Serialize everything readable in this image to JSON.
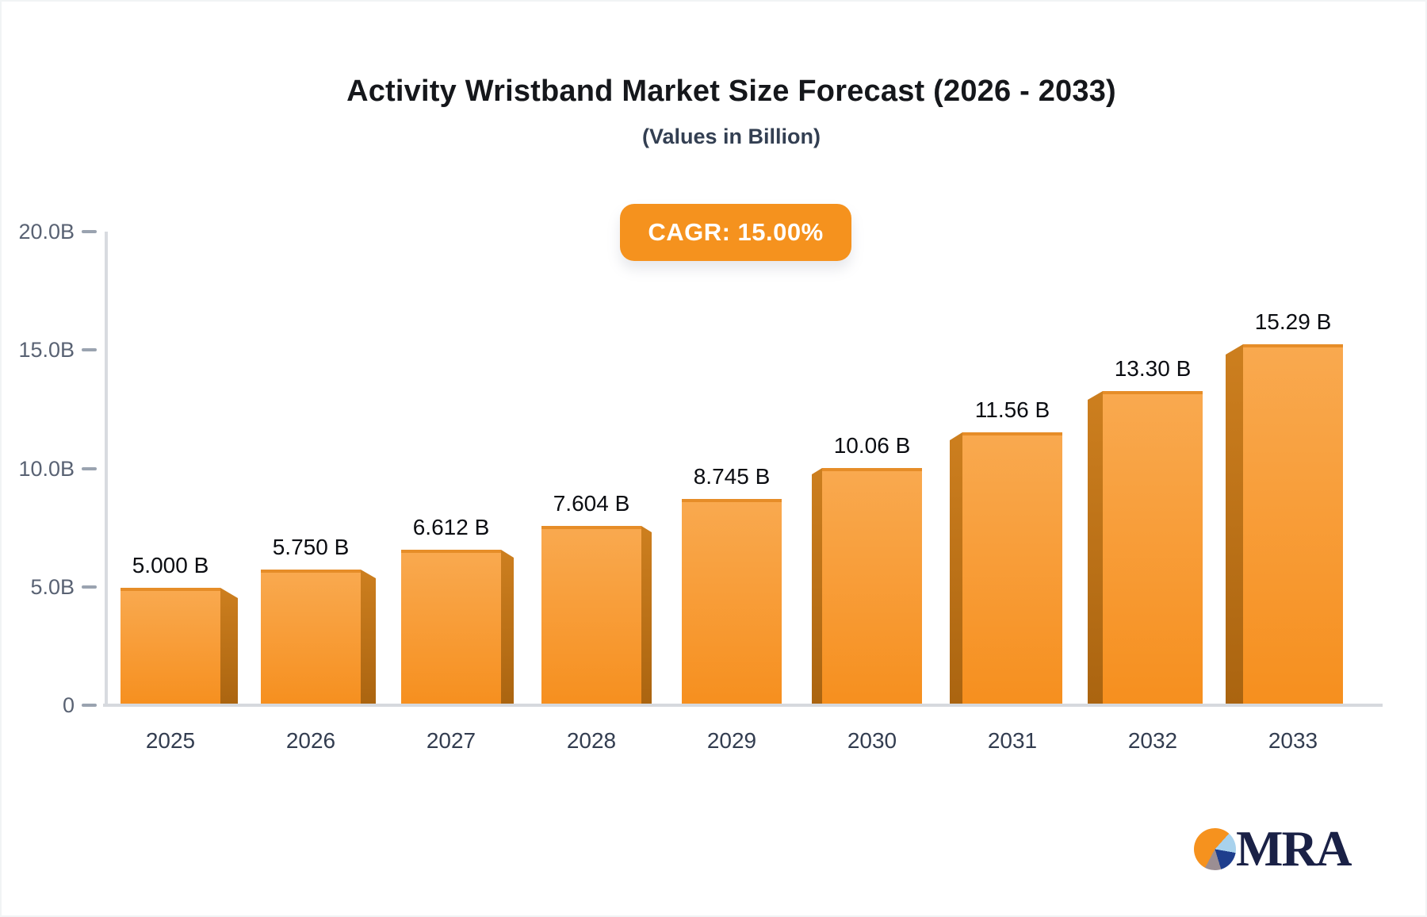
{
  "header": {
    "title": "Activity Wristband Market Size Forecast (2026 - 2033)",
    "subtitle": "(Values in Billion)",
    "cagr_badge": "CAGR: 15.00%"
  },
  "chart_data": {
    "type": "bar",
    "title": "Activity Wristband Market Size Forecast (2026 - 2033)",
    "subtitle": "(Values in Billion)",
    "unit": "Billion",
    "cagr_percent": 15.0,
    "categories": [
      "2025",
      "2026",
      "2027",
      "2028",
      "2029",
      "2030",
      "2031",
      "2032",
      "2033"
    ],
    "values": [
      5.0,
      5.75,
      6.612,
      7.604,
      8.745,
      10.06,
      11.56,
      13.3,
      15.29
    ],
    "bar_labels": [
      "5.000 B",
      "5.750 B",
      "6.612 B",
      "7.604 B",
      "8.745 B",
      "10.06 B",
      "11.56 B",
      "13.30 B",
      "15.29 B"
    ],
    "ylim": [
      0,
      20
    ],
    "y_ticks": [
      {
        "label": "20.0B",
        "value": 20
      },
      {
        "label": "15.0B",
        "value": 15
      },
      {
        "label": "10.0B",
        "value": 10
      },
      {
        "label": "5.0B",
        "value": 5
      },
      {
        "label": "0",
        "value": 0
      }
    ],
    "grid": false,
    "legend": false,
    "bar_color": "#F6921E"
  },
  "colors": {
    "accent_orange": "#F6921E",
    "bar_front_top": "#F9A94F",
    "bar_front_bottom": "#F68F1E",
    "bar_top_edge": "#E68D28",
    "bar_side_top": "#CD7F1F",
    "bar_side_bottom": "#AA6410",
    "axis_line": "#D8DBE0",
    "tick_mark": "#9AA3B0",
    "y_label_text": "#596273",
    "x_label_text": "#333D50",
    "value_label_text": "#0B0D12",
    "title_text": "#15171B",
    "subtitle_text": "#333F52",
    "badge_background": "#F5921E",
    "badge_text": "#FFFFFF",
    "logo_text": "#1A2146"
  },
  "logo": {
    "text": "MRA",
    "pie_slices": [
      {
        "name": "light-blue",
        "color": "#A8D2ED",
        "from_deg": 42,
        "to_deg": 100
      },
      {
        "name": "dark-blue",
        "color": "#1E3E8D",
        "from_deg": 100,
        "to_deg": 163
      },
      {
        "name": "gray",
        "color": "#9B8E93",
        "from_deg": 163,
        "to_deg": 208
      },
      {
        "name": "orange",
        "color": "#F6921E",
        "from_deg": 208,
        "to_deg": 402
      }
    ]
  }
}
